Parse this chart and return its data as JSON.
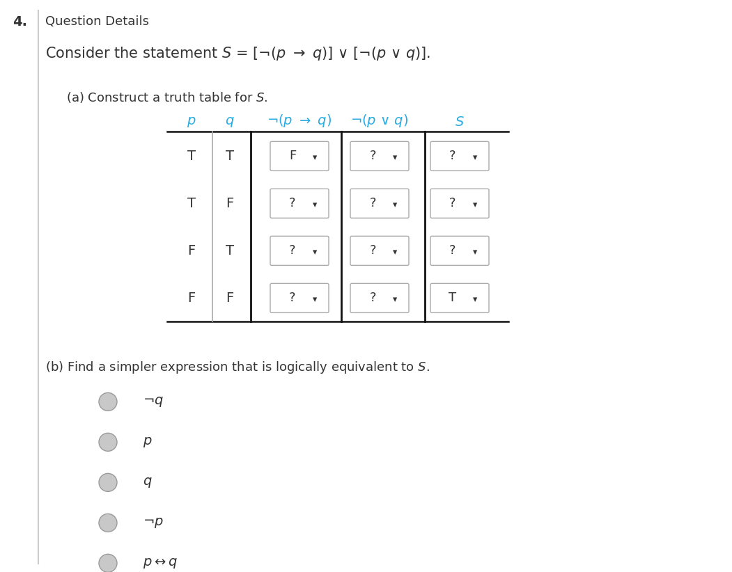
{
  "title_number": "4.",
  "title_label": "Question Details",
  "bg_color": "#ffffff",
  "text_color": "#333333",
  "cyan_color": "#29ABE2",
  "cell_border": "#aaaaaa",
  "thick_border": "#111111",
  "thin_border": "#aaaaaa",
  "left_bar_color": "#cccccc",
  "radio_fill": "#c8c8c8",
  "row_data": [
    [
      "T",
      "T",
      "F",
      "?",
      "?"
    ],
    [
      "T",
      "F",
      "?",
      "?",
      "?"
    ],
    [
      "F",
      "T",
      "?",
      "?",
      "?"
    ],
    [
      "F",
      "F",
      "?",
      "?",
      "T"
    ]
  ]
}
